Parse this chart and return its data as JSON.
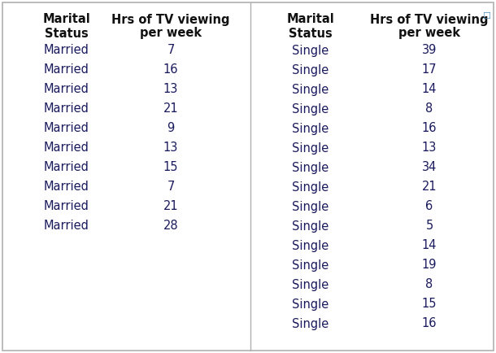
{
  "col1_header": "Marital\nStatus",
  "col2_header": "Hrs of TV viewing\nper week",
  "col3_header": "Marital\nStatus",
  "col4_header": "Hrs of TV viewing\nper week",
  "married_status": [
    "Married",
    "Married",
    "Married",
    "Married",
    "Married",
    "Married",
    "Married",
    "Married",
    "Married",
    "Married"
  ],
  "married_hrs": [
    "7",
    "16",
    "13",
    "21",
    "9",
    "13",
    "15",
    "7",
    "21",
    "28"
  ],
  "single_status": [
    "Single",
    "Single",
    "Single",
    "Single",
    "Single",
    "Single",
    "Single",
    "Single",
    "Single",
    "Single",
    "Single",
    "Single",
    "Single",
    "Single",
    "Single"
  ],
  "single_hrs": [
    "39",
    "17",
    "14",
    "8",
    "16",
    "13",
    "34",
    "21",
    "6",
    "5",
    "14",
    "19",
    "8",
    "15",
    "16"
  ],
  "bg_color": "#ffffff",
  "border_color": "#b0b0b0",
  "header_color": "#111111",
  "data_color": "#1a1a5e",
  "header_font_size": 10.5,
  "data_font_size": 10.5,
  "icon_color": "#4488bb"
}
